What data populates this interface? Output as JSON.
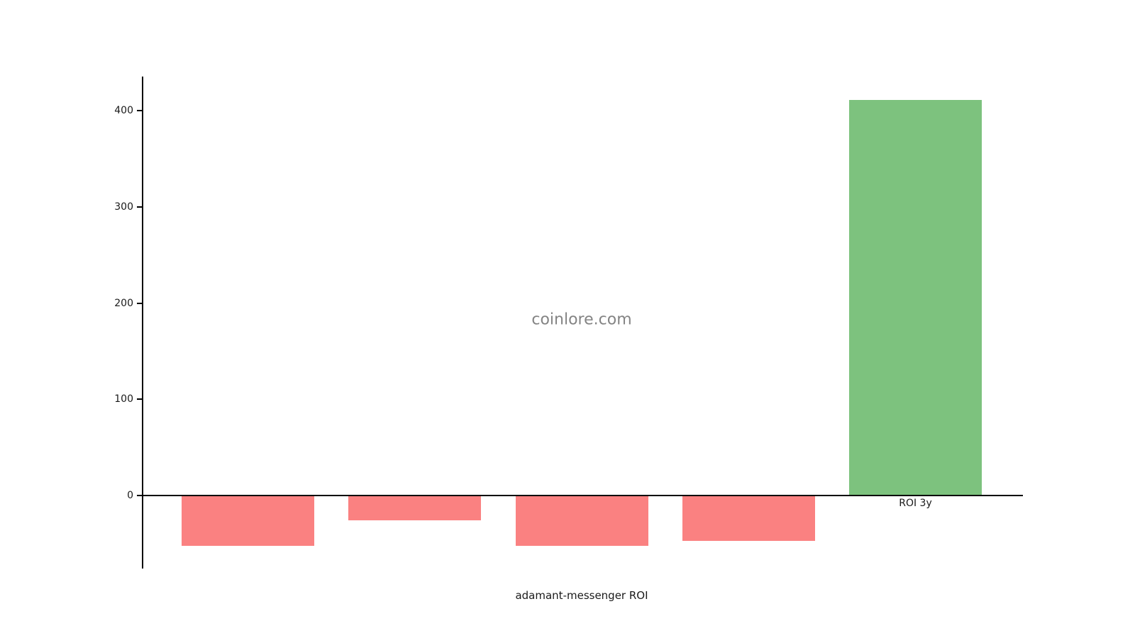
{
  "chart_data": {
    "type": "bar",
    "title": "adamant-messenger ROI",
    "watermark": "coinlore.com",
    "x_labels": [
      "",
      "",
      "",
      "",
      "ROI 3y"
    ],
    "values": [
      -52,
      -26,
      -52,
      -47,
      411
    ],
    "series": [
      {
        "name": "ROI",
        "values": [
          -52,
          -26,
          -52,
          -47,
          411
        ]
      }
    ],
    "yticks": [
      0,
      100,
      200,
      300,
      400
    ],
    "ylim": [
      -76,
      435
    ],
    "grid": false,
    "legend_position": "none",
    "negative_color": "#fa8181",
    "positive_color": "#7dc27e",
    "axis_color": "#000000",
    "text_color": "#1a1a1a",
    "watermark_color": "#848484",
    "background_color": "#ffffff"
  }
}
